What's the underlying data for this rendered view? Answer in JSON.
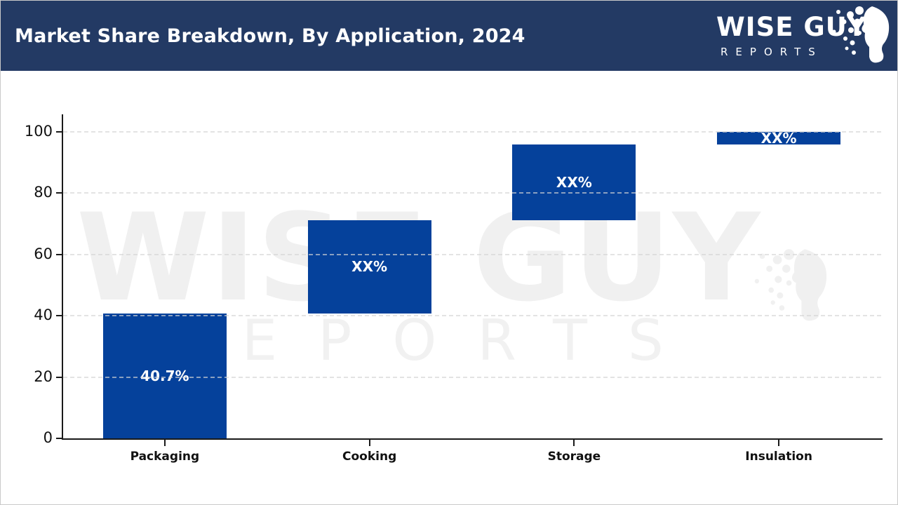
{
  "header": {
    "title": "Market Share Breakdown, By Application, 2024",
    "bg_color": "#233a64",
    "logo": {
      "primary": "WISE GUY",
      "secondary": "REPORTS"
    }
  },
  "watermark": {
    "primary": "WISE GUY",
    "secondary": "REPORTS"
  },
  "chart_data": {
    "type": "bar",
    "subtype": "waterfall",
    "title": "Market Share Breakdown, By Application, 2024",
    "categories": [
      "Packaging",
      "Cooking",
      "Storage",
      "Insulation"
    ],
    "segments": [
      {
        "category": "Packaging",
        "start": 0,
        "end": 40.7,
        "label": "40.7%"
      },
      {
        "category": "Cooking",
        "start": 40.7,
        "end": 71.2,
        "label": "XX%"
      },
      {
        "category": "Storage",
        "start": 71.2,
        "end": 95.8,
        "label": "XX%"
      },
      {
        "category": "Insulation",
        "start": 95.8,
        "end": 100,
        "label": "XX%"
      }
    ],
    "y_ticks": [
      0,
      20,
      40,
      60,
      80,
      100
    ],
    "ylim": [
      0,
      105.5
    ],
    "xlabel": "",
    "ylabel": "",
    "grid": "horizontal-dashed",
    "legend": "none",
    "bar_color": "#05419b",
    "bar_label_color": "#ffffff",
    "gridline_color": "#dcdcdc",
    "axis_color": "#1a1a1a"
  }
}
